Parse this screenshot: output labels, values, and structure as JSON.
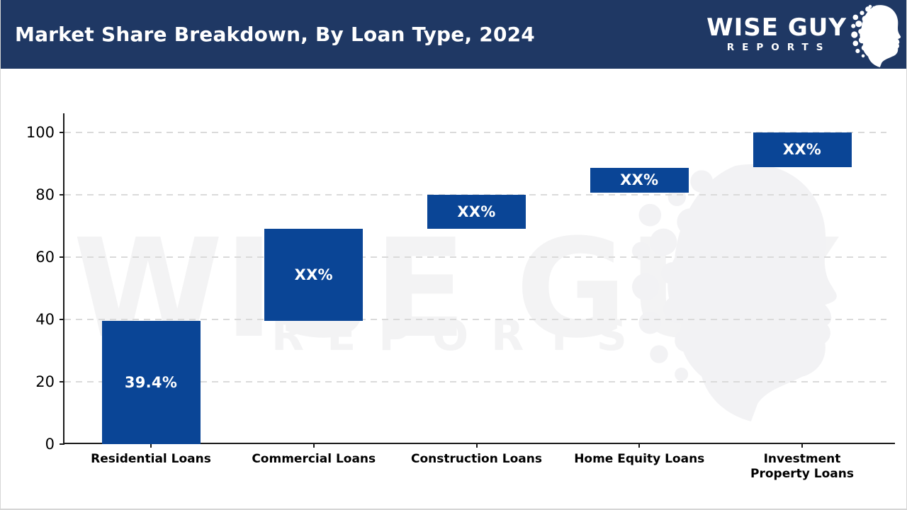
{
  "header": {
    "title": "Market Share Breakdown, By Loan Type, 2024",
    "logo": {
      "line1": "WISE GUY",
      "line2": "REPORTS"
    }
  },
  "watermark": {
    "line1": "WISE GUY",
    "line2": "REPORTS"
  },
  "chart_data": {
    "type": "bar",
    "subtype": "waterfall",
    "title": "Market Share Breakdown, By Loan Type, 2024",
    "categories": [
      "Residential Loans",
      "Commercial Loans",
      "Construction Loans",
      "Home Equity Loans",
      "Investment Property Loans"
    ],
    "segments": [
      {
        "category": "Residential Loans",
        "start": 0,
        "end": 39.4,
        "label": "39.4%"
      },
      {
        "category": "Commercial Loans",
        "start": 39.4,
        "end": 69.0,
        "label": "XX%"
      },
      {
        "category": "Construction Loans",
        "start": 69.0,
        "end": 80.0,
        "label": "XX%"
      },
      {
        "category": "Home Equity Loans",
        "start": 80.6,
        "end": 88.6,
        "label": "XX%"
      },
      {
        "category": "Investment Property Loans",
        "start": 88.8,
        "end": 100.0,
        "label": "XX%"
      }
    ],
    "y_ticks": [
      0,
      20,
      40,
      60,
      80,
      100
    ],
    "ylim": [
      0,
      106
    ],
    "xlabel": "",
    "ylabel": "",
    "grid": "dashed-horizontal",
    "legend": "none",
    "bar_color": "#0a4596",
    "bar_label_color": "#ffffff",
    "header_color": "#1f3864",
    "gridline_color": "#dadada",
    "axis_color": "#1a1a1a"
  }
}
